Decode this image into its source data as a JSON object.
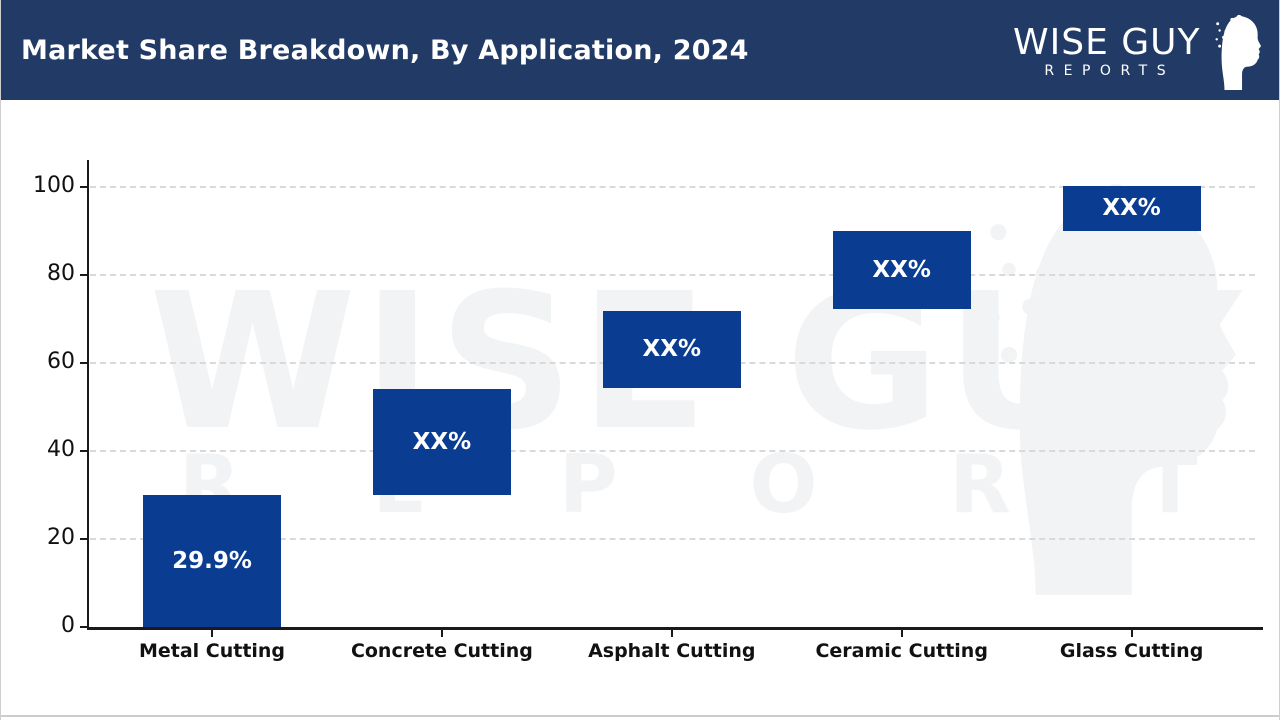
{
  "header": {
    "title": "Market Share Breakdown, By Application, 2024",
    "bg_color": "#213a66",
    "logo": {
      "line1": "WISE GUY",
      "line2": "REPORTS"
    }
  },
  "watermark": {
    "line1": "WISE GUY",
    "line2": "REPORTS"
  },
  "chart_data": {
    "type": "bar",
    "subtype": "floating-waterfall",
    "title": "Market Share Breakdown, By Application, 2024",
    "categories": [
      "Metal Cutting",
      "Concrete Cutting",
      "Asphalt Cutting",
      "Ceramic Cutting",
      "Glass Cutting"
    ],
    "bars": [
      {
        "category": "Metal Cutting",
        "start": 0,
        "end": 29.9,
        "label": "29.9%"
      },
      {
        "category": "Concrete Cutting",
        "start": 30.0,
        "end": 54.2,
        "label": "XX%"
      },
      {
        "category": "Asphalt Cutting",
        "start": 54.4,
        "end": 71.9,
        "label": "XX%"
      },
      {
        "category": "Ceramic Cutting",
        "start": 72.2,
        "end": 90.0,
        "label": "XX%"
      },
      {
        "category": "Glass Cutting",
        "start": 90.0,
        "end": 100.3,
        "label": "XX%"
      }
    ],
    "xlabel": "",
    "ylabel": "",
    "ylim": [
      0,
      106
    ],
    "yticks": [
      0,
      20,
      40,
      60,
      80,
      100
    ],
    "grid": "horizontal-dashed",
    "legend": "none",
    "bar_color": "#0a3d91",
    "bar_label_color": "#ffffff",
    "axis_color": "#1a1a1a",
    "gridline_color": "#d9d9d9"
  }
}
